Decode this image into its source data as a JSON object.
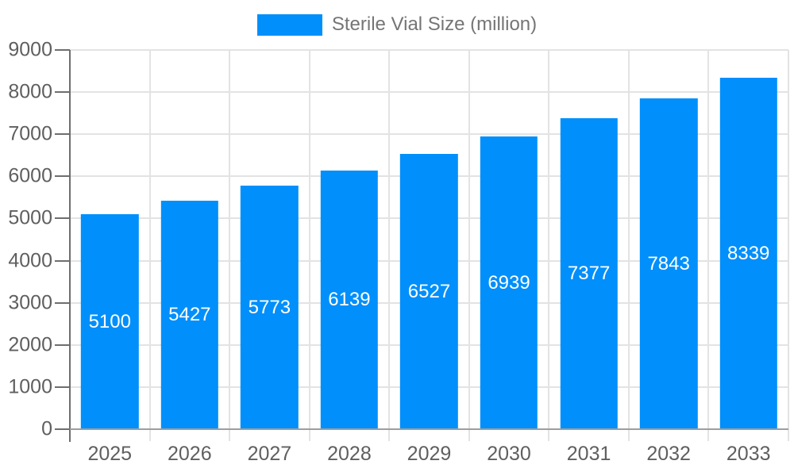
{
  "legend": {
    "label": "Sterile Vial Size (million)",
    "swatch_color": "#008FFB"
  },
  "chart_data": {
    "type": "bar",
    "title": "",
    "categories": [
      "2025",
      "2026",
      "2027",
      "2028",
      "2029",
      "2030",
      "2031",
      "2032",
      "2033"
    ],
    "series": [
      {
        "name": "Sterile Vial Size (million)",
        "values": [
          5100,
          5427,
          5773,
          6139,
          6527,
          6939,
          7377,
          7843,
          8339
        ]
      }
    ],
    "xlabel": "",
    "ylabel": "",
    "ylim": [
      0,
      9000
    ],
    "y_ticks": [
      0,
      1000,
      2000,
      3000,
      4000,
      5000,
      6000,
      7000,
      8000,
      9000
    ],
    "grid": true,
    "legend_position": "top",
    "data_labels": "inside-center",
    "color": "#008FFB"
  }
}
